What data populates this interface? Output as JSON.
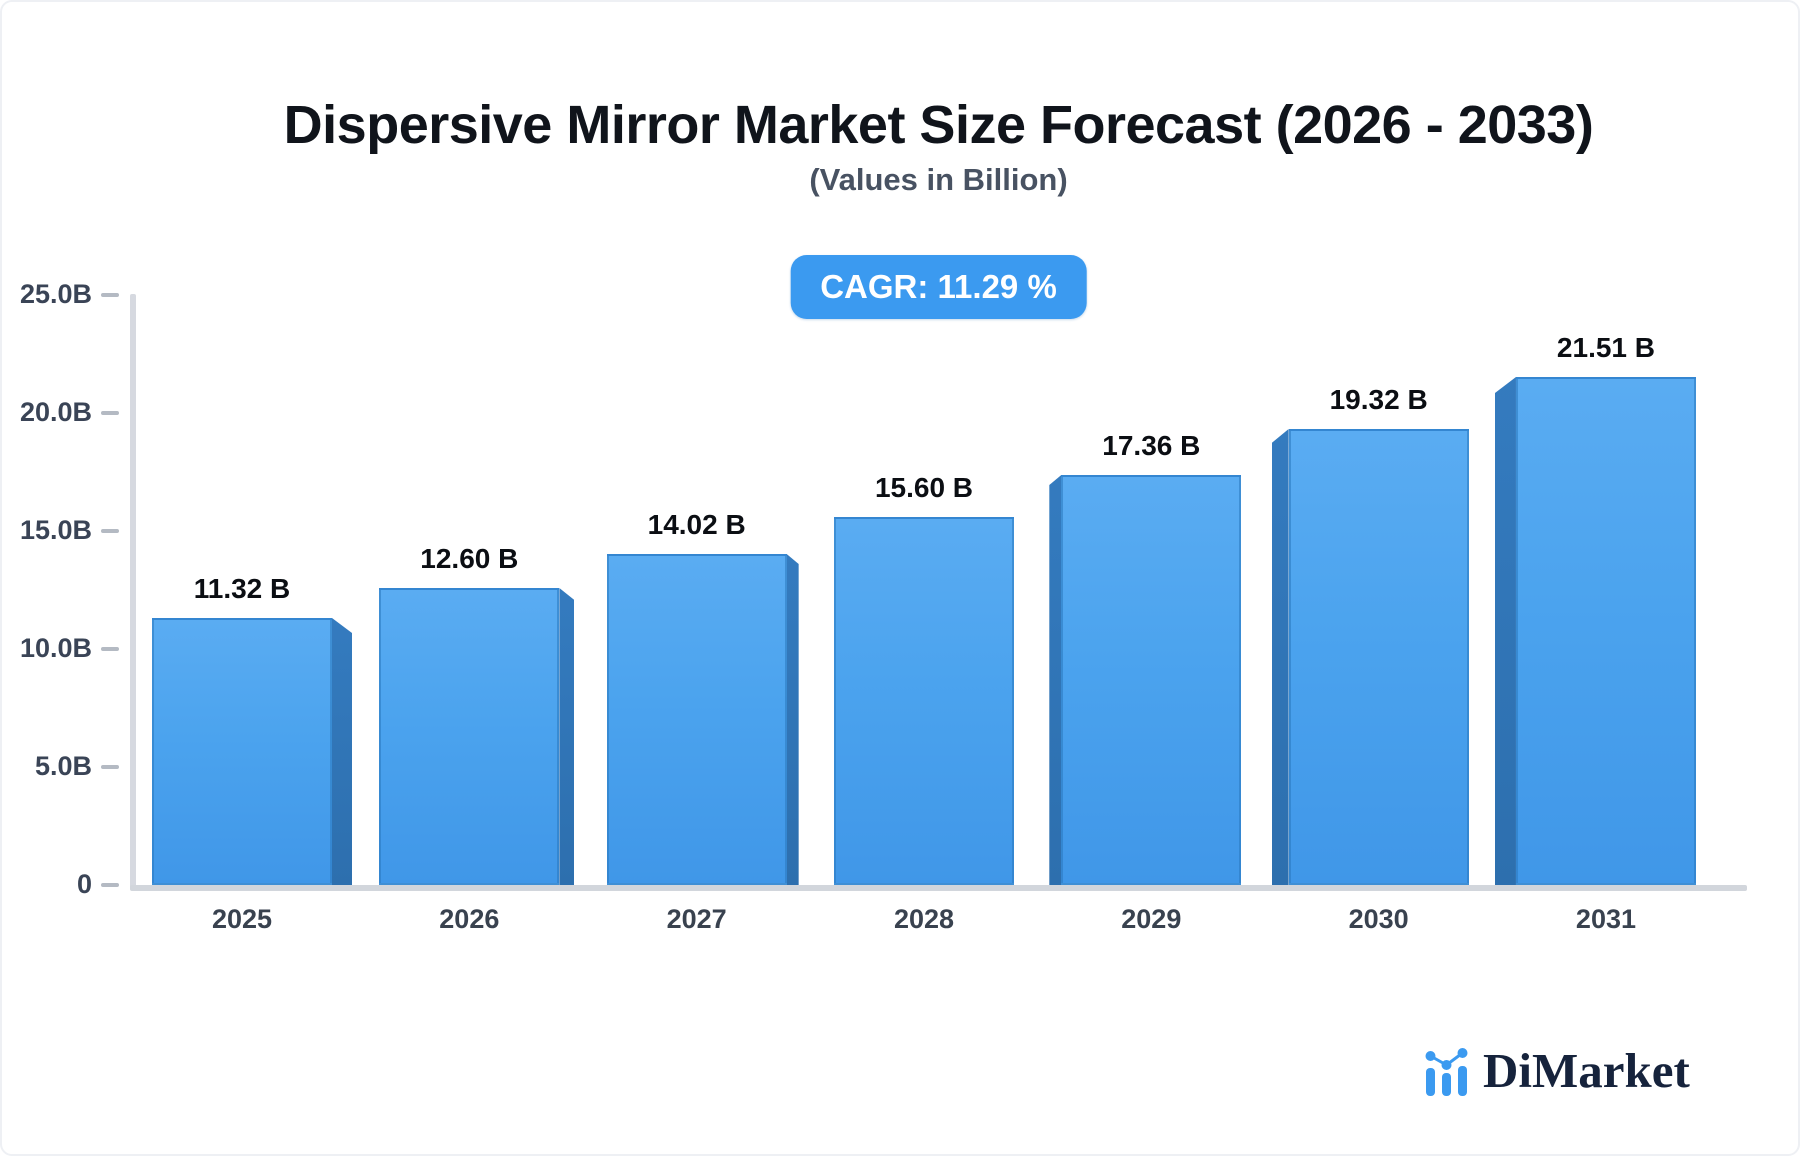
{
  "header": {
    "title": "Dispersive Mirror Market Size Forecast (2026 - 2033)",
    "subtitle": "(Values in Billion)",
    "cagr_label": "CAGR: 11.29 %"
  },
  "chart_data": {
    "type": "bar",
    "title": "Dispersive Mirror Market Size Forecast (2026 - 2033)",
    "subtitle": "(Values in Billion)",
    "cagr_percent": 11.29,
    "categories": [
      "2025",
      "2026",
      "2027",
      "2028",
      "2029",
      "2030",
      "2031"
    ],
    "values": [
      11.32,
      12.6,
      14.02,
      15.6,
      17.36,
      19.32,
      21.51
    ],
    "value_labels": [
      "11.32 B",
      "12.60 B",
      "14.02 B",
      "15.60 B",
      "17.36 B",
      "19.32 B",
      "21.51 B"
    ],
    "unit": "Billion",
    "ylim": [
      0,
      25
    ],
    "ytick_labels": [
      "25.0B",
      "20.0B",
      "15.0B",
      "10.0B",
      "5.0B",
      "0"
    ],
    "grid": false,
    "legend": "none",
    "bar_style": "3d-box",
    "colors": {
      "bar_fill_top": "#5aacf2",
      "bar_fill_bottom": "#4097e8",
      "bar_side": "#2e71b2",
      "accent_badge": "#3b9af0",
      "axis_line": "#d6d9e0",
      "tick_text": "#3a4456",
      "title_text": "#10141b"
    }
  },
  "branding": {
    "logo_text": "DiMarket",
    "logo_icon": "bar-chart-icon"
  }
}
